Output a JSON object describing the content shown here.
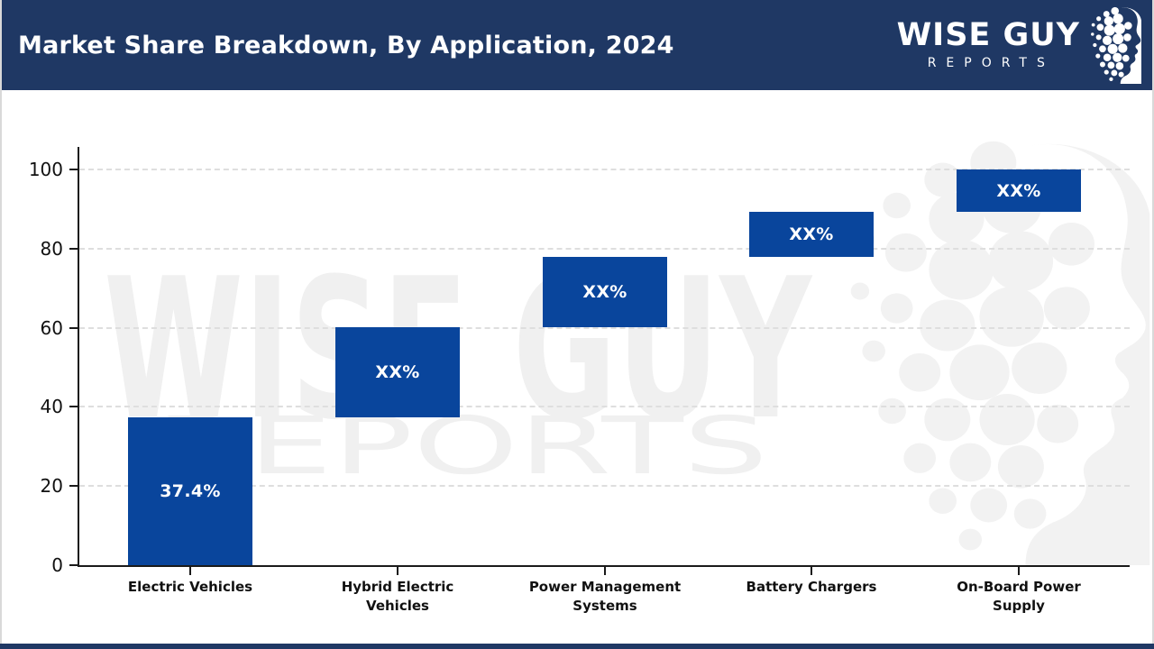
{
  "header": {
    "title": "Market Share Breakdown, By Application, 2024",
    "background_color": "#1f3864",
    "logo": {
      "wordmark": "WISE GUY",
      "subtext": "REPORTS",
      "icon": "dotted-face-profile-icon"
    }
  },
  "watermark": {
    "wordmark": "WISE GUY",
    "subtext": "REPORTS"
  },
  "chart_data": {
    "type": "bar",
    "variant": "waterfall",
    "title": "Market Share Breakdown, By Application, 2024",
    "xlabel": "",
    "ylabel": "",
    "ylim": [
      0,
      105
    ],
    "yticks": [
      0,
      20,
      40,
      60,
      80,
      100
    ],
    "grid": "horizontal-dashed",
    "legend": "none",
    "bar_color": "#09459c",
    "bar_label_color": "#ffffff",
    "categories": [
      "Electric Vehicles",
      "Hybrid Electric Vehicles",
      "Power Management Systems",
      "Battery Chargers",
      "On-Board Power Supply"
    ],
    "segments": [
      {
        "category": "Electric Vehicles",
        "start": 0,
        "end": 37.4,
        "label": "37.4%"
      },
      {
        "category": "Hybrid Electric Vehicles",
        "start": 37.4,
        "end": 60.2,
        "label": "XX%"
      },
      {
        "category": "Power Management Systems",
        "start": 60.2,
        "end": 77.8,
        "label": "XX%"
      },
      {
        "category": "Battery Chargers",
        "start": 77.8,
        "end": 89.2,
        "label": "XX%"
      },
      {
        "category": "On-Board Power Supply",
        "start": 89.2,
        "end": 100,
        "label": "XX%"
      }
    ]
  }
}
